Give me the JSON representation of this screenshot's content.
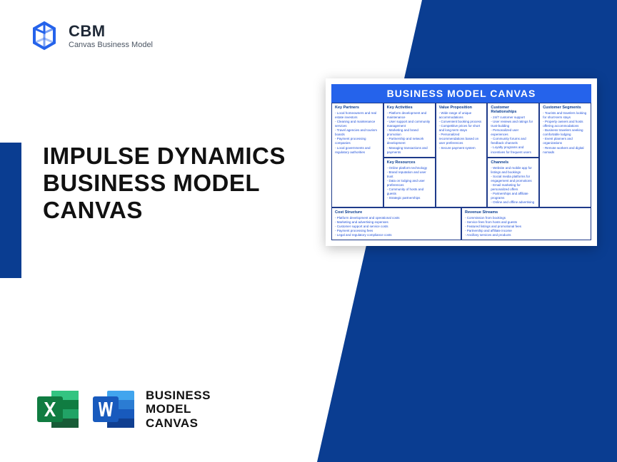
{
  "logo": {
    "title": "CBM",
    "subtitle": "Canvas Business Model"
  },
  "main_title": "IMPULSE DYNAMICS BUSINESS MODEL CANVAS",
  "bottom_label": "BUSINESS\nMODEL\nCANVAS",
  "canvas": {
    "title": "BUSINESS MODEL CANVAS",
    "columns": {
      "key_partners": {
        "header": "Key Partners",
        "items": [
          "Local homeowners and real estate investors",
          "Cleaning and maintenance services",
          "Travel agencies and tourism boards",
          "Payment processing companies",
          "Local governments and regulatory authorities"
        ]
      },
      "key_activities": {
        "header": "Key Activities",
        "items": [
          "Platform development and maintenance",
          "User support and community management",
          "Marketing and brand promotion",
          "Partnership and network development",
          "Managing transactions and payments"
        ]
      },
      "key_resources": {
        "header": "Key Resources",
        "items": [
          "Online platform technology",
          "Brand reputation and user trust",
          "Data on lodging and user preferences",
          "Community of hosts and guests",
          "Strategic partnerships"
        ]
      },
      "value_proposition": {
        "header": "Value Proposition",
        "items": [
          "Wide range of unique accommodations",
          "Convenient booking process",
          "Competitive prices for short and long-term stays",
          "Personalized recommendations based on user preferences",
          "Secure payment system"
        ]
      },
      "customer_relationships": {
        "header": "Customer Relationships",
        "items": [
          "24/7 customer support",
          "User reviews and ratings for trust-building",
          "Personalized user experiences",
          "Community forums and feedback channels",
          "Loyalty programs and incentives for frequent users"
        ]
      },
      "channels": {
        "header": "Channels",
        "items": [
          "Website and mobile app for listings and bookings",
          "Social media platforms for engagement and promotions",
          "Email marketing for personalized offers",
          "Partnerships and affiliate programs",
          "Online and offline advertising"
        ]
      },
      "customer_segments": {
        "header": "Customer Segments",
        "items": [
          "Tourists and travelers looking for short-term stays",
          "Property owners and hosts offering accommodations",
          "Business travelers seeking comfortable lodging",
          "Event planners and organizations",
          "Remote workers and digital nomads"
        ]
      },
      "cost_structure": {
        "header": "Cost Structure",
        "items": [
          "Platform development and operational costs",
          "Marketing and advertising expenses",
          "Customer support and service costs",
          "Payment processing fees",
          "Legal and regulatory compliance costs"
        ]
      },
      "revenue_streams": {
        "header": "Revenue Streams",
        "items": [
          "Commission from bookings",
          "Service fees from hosts and guests",
          "Featured listings and promotional fees",
          "Partnership and affiliate income",
          "Ancillary services and products"
        ]
      }
    }
  },
  "colors": {
    "primary_blue": "#0a3d91",
    "bright_blue": "#2563eb",
    "excel_green": "#107c41",
    "word_blue": "#185abd"
  }
}
